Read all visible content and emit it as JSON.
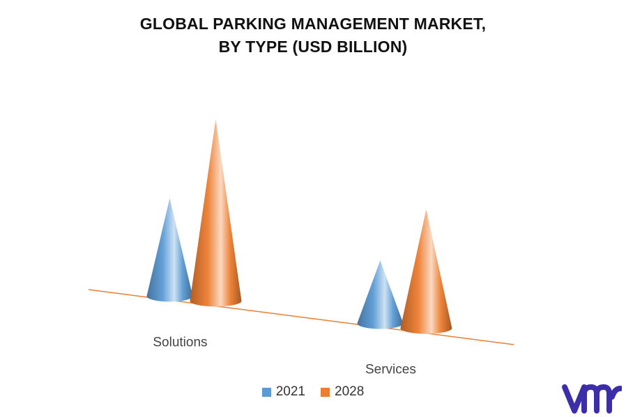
{
  "chart_data": {
    "type": "bar",
    "title_line1": "GLOBAL PARKING MANAGEMENT MARKET,",
    "title_line2": "BY TYPE (USD BILLION)",
    "categories": [
      "Solutions",
      "Services"
    ],
    "series": [
      {
        "name": "2021",
        "color": "#5b9bd5",
        "values": [
          1.4,
          0.9
        ]
      },
      {
        "name": "2028",
        "color": "#ed7d31",
        "values": [
          2.6,
          1.7
        ]
      }
    ],
    "shape": "cone",
    "grid": false,
    "legend_position": "bottom"
  },
  "logo": {
    "text": "vmr",
    "icon": "vmr-logo-icon",
    "color": "#3b2ea8"
  }
}
